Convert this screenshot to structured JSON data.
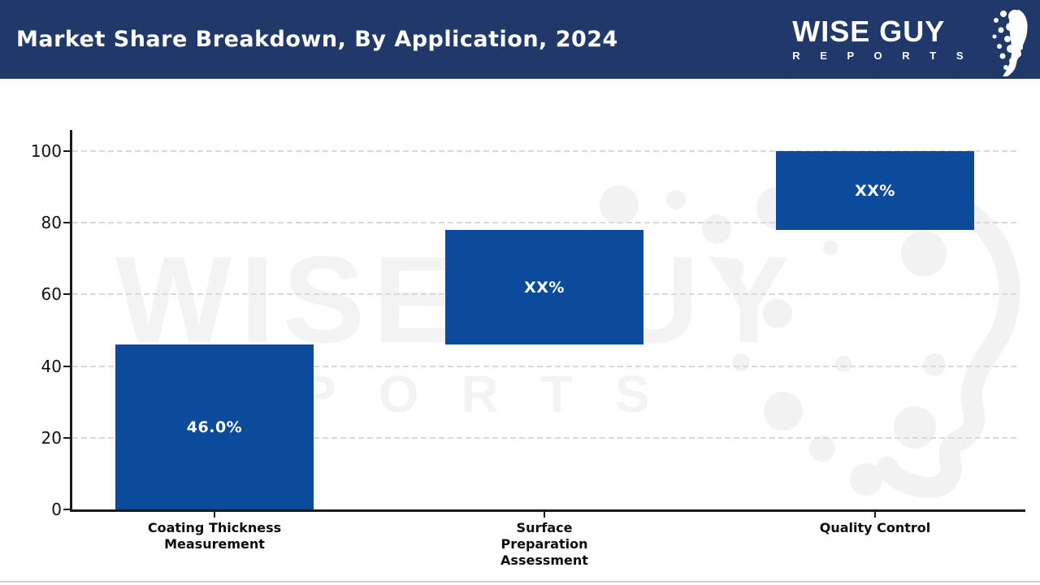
{
  "header": {
    "title": "Market Share Breakdown, By Application, 2024",
    "logo": {
      "line1": "WISE GUY",
      "line2": "R E P O R T S"
    }
  },
  "watermark": {
    "line1": "WISE GUY",
    "line2": "REPORTS"
  },
  "chart_data": {
    "type": "bar",
    "subtype": "waterfall-floating-bars",
    "title": "Market Share Breakdown, By Application, 2024",
    "categories": [
      "Coating Thickness Measurement",
      "Surface Preparation Assessment",
      "Quality Control"
    ],
    "category_lines": [
      [
        "Coating Thickness",
        "Measurement"
      ],
      [
        "Surface",
        "Preparation",
        "Assessment"
      ],
      [
        "Quality Control"
      ]
    ],
    "segments": [
      {
        "category": "Coating Thickness Measurement",
        "start": 0,
        "end": 46,
        "label": "46.0%"
      },
      {
        "category": "Surface Preparation Assessment",
        "start": 46,
        "end": 78,
        "label": "XX%"
      },
      {
        "category": "Quality Control",
        "start": 78,
        "end": 100,
        "label": "XX%"
      }
    ],
    "yticks": [
      0,
      20,
      40,
      60,
      80,
      100
    ],
    "ylim": [
      0,
      106
    ],
    "xlabel": "",
    "ylabel": "",
    "grid": "horizontal-dashed",
    "legend": "none",
    "bar_color": "#0c4a9c",
    "value_label_color": "#ffffff",
    "header_color": "#21386b"
  }
}
